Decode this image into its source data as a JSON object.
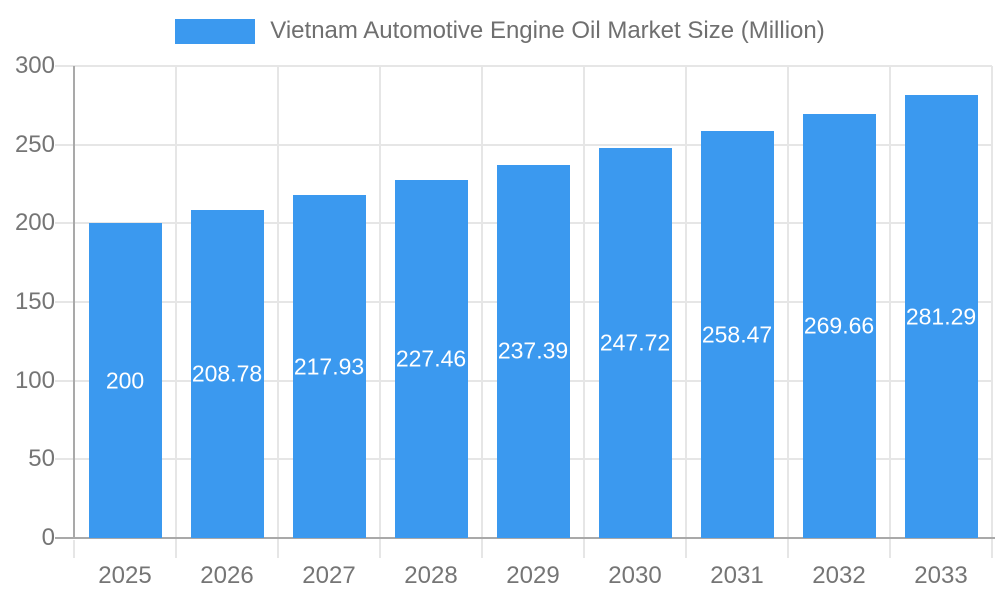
{
  "chart_data": {
    "type": "bar",
    "title": "Vietnam Automotive Engine Oil Market Size (Million)",
    "legend": [
      {
        "label": "Vietnam Automotive Engine Oil Market Size (Million)",
        "color": "#3B99EF"
      }
    ],
    "legend_position": "top",
    "categories": [
      "2025",
      "2026",
      "2027",
      "2028",
      "2029",
      "2030",
      "2031",
      "2032",
      "2033"
    ],
    "values": [
      200,
      208.78,
      217.93,
      227.46,
      237.39,
      247.72,
      258.47,
      269.66,
      281.29
    ],
    "value_labels": [
      "200",
      "208.78",
      "217.93",
      "227.46",
      "237.39",
      "247.72",
      "258.47",
      "269.66",
      "281.29"
    ],
    "xlabel": "",
    "ylabel": "",
    "ylim": [
      0,
      300
    ],
    "yticks": [
      0,
      50,
      100,
      150,
      200,
      250,
      300
    ],
    "grid": "on",
    "colors": {
      "bar": "#3B99EF",
      "grid": "#E6E6E6",
      "axis": "#A9A9A9",
      "tick_text": "#757575",
      "legend_text": "#6F6F6F",
      "bar_label_text": "#FFFFFF",
      "background": "#FFFFFF"
    }
  }
}
